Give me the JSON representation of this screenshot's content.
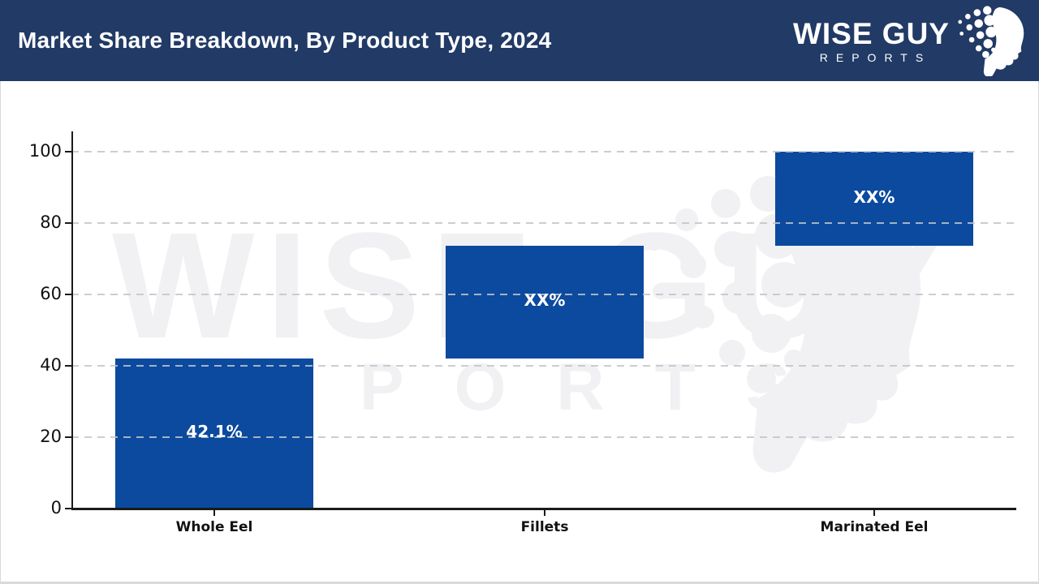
{
  "header": {
    "title": "Market Share Breakdown, By Product Type, 2024",
    "bg_color": "#213a66",
    "logo": {
      "line1": "WISE GUY",
      "line2": "REPORTS"
    }
  },
  "watermark": {
    "line1": "WISE GUY",
    "line2": "REPORTS"
  },
  "chart_data": {
    "type": "bar",
    "subtype": "waterfall",
    "title": "Market Share Breakdown, By Product Type, 2024",
    "xlabel": "",
    "ylabel": "",
    "categories": [
      "Whole Eel",
      "Fillets",
      "Marinated Eel"
    ],
    "segments": [
      {
        "category": "Whole Eel",
        "start": 0,
        "end": 42.1,
        "data_label": "42.1%"
      },
      {
        "category": "Fillets",
        "start": 42.1,
        "end": 73.6,
        "data_label": "XX%"
      },
      {
        "category": "Marinated Eel",
        "start": 73.6,
        "end": 100,
        "data_label": "XX%"
      }
    ],
    "ylim": [
      0,
      100
    ],
    "yticks": [
      0,
      20,
      40,
      60,
      80,
      100
    ],
    "grid": "horizontal-dashed",
    "legend": "none",
    "bar_color": "#0b4a9e",
    "bar_label_color": "#ffffff"
  }
}
